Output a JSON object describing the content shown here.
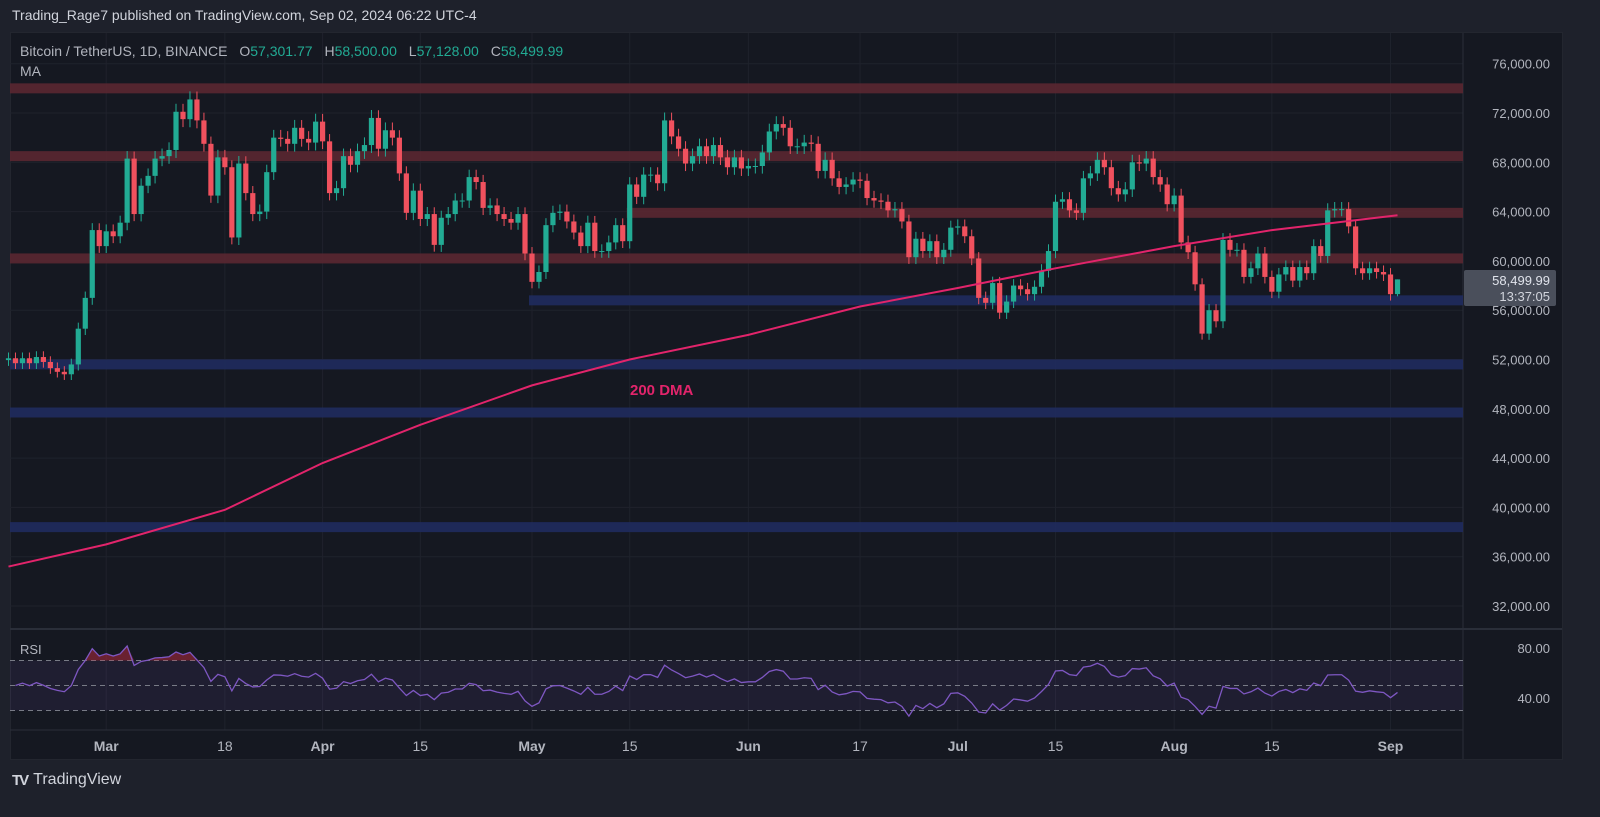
{
  "publication": "Trading_Rage7 published on TradingView.com, Sep 02, 2024 06:22 UTC-4",
  "header": {
    "symbol": "Bitcoin / TetherUS, 1D, BINANCE",
    "o_label": "O",
    "o": "57,301.77",
    "h_label": "H",
    "h": "58,500.00",
    "l_label": "L",
    "l": "57,128.00",
    "c_label": "C",
    "c": "58,499.99",
    "indicator": "MA"
  },
  "current_price": {
    "price": "58,499.99",
    "countdown": "13:37:05"
  },
  "footer": {
    "brand": "TradingView",
    "logo_glyph": "TV"
  },
  "chart_data": {
    "type": "candlestick",
    "colors": {
      "up": "#22ab94",
      "down": "#f0515e",
      "ma": "#e2246b",
      "rsi": "#7e57c2",
      "resistance": "#5a2731",
      "support": "#1f2b5e"
    },
    "price_axis": {
      "range": [
        30000,
        78000
      ],
      "ticks": [
        "76,000.00",
        "72,000.00",
        "68,000.00",
        "64,000.00",
        "60,000.00",
        "56,000.00",
        "52,000.00",
        "48,000.00",
        "44,000.00",
        "40,000.00",
        "36,000.00",
        "32,000.00"
      ],
      "tick_values": [
        76000,
        72000,
        68000,
        64000,
        60000,
        56000,
        52000,
        48000,
        44000,
        40000,
        36000,
        32000
      ]
    },
    "time_axis": {
      "ticks": [
        {
          "date": "2024-03-01",
          "label": "Mar",
          "bold": true
        },
        {
          "date": "2024-03-18",
          "label": "18",
          "bold": false
        },
        {
          "date": "2024-04-01",
          "label": "Apr",
          "bold": true
        },
        {
          "date": "2024-04-15",
          "label": "15",
          "bold": false
        },
        {
          "date": "2024-05-01",
          "label": "May",
          "bold": true
        },
        {
          "date": "2024-05-15",
          "label": "15",
          "bold": false
        },
        {
          "date": "2024-06-01",
          "label": "Jun",
          "bold": true
        },
        {
          "date": "2024-06-17",
          "label": "17",
          "bold": false
        },
        {
          "date": "2024-07-01",
          "label": "Jul",
          "bold": true
        },
        {
          "date": "2024-07-15",
          "label": "15",
          "bold": false
        },
        {
          "date": "2024-08-01",
          "label": "Aug",
          "bold": true
        },
        {
          "date": "2024-08-15",
          "label": "15",
          "bold": false
        },
        {
          "date": "2024-09-01",
          "label": "Sep",
          "bold": true
        }
      ]
    },
    "dates": [
      "2024-02-16",
      "2024-02-17",
      "2024-02-18",
      "2024-02-19",
      "2024-02-20",
      "2024-02-21",
      "2024-02-22",
      "2024-02-23",
      "2024-02-24",
      "2024-02-25",
      "2024-02-26",
      "2024-02-27",
      "2024-02-28",
      "2024-02-29",
      "2024-03-01",
      "2024-03-02",
      "2024-03-03",
      "2024-03-04",
      "2024-03-05",
      "2024-03-06",
      "2024-03-07",
      "2024-03-08",
      "2024-03-09",
      "2024-03-10",
      "2024-03-11",
      "2024-03-12",
      "2024-03-13",
      "2024-03-14",
      "2024-03-15",
      "2024-03-16",
      "2024-03-17",
      "2024-03-18",
      "2024-03-19",
      "2024-03-20",
      "2024-03-21",
      "2024-03-22",
      "2024-03-23",
      "2024-03-24",
      "2024-03-25",
      "2024-03-26",
      "2024-03-27",
      "2024-03-28",
      "2024-03-29",
      "2024-03-30",
      "2024-03-31",
      "2024-04-01",
      "2024-04-02",
      "2024-04-03",
      "2024-04-04",
      "2024-04-05",
      "2024-04-06",
      "2024-04-07",
      "2024-04-08",
      "2024-04-09",
      "2024-04-10",
      "2024-04-11",
      "2024-04-12",
      "2024-04-13",
      "2024-04-14",
      "2024-04-15",
      "2024-04-16",
      "2024-04-17",
      "2024-04-18",
      "2024-04-19",
      "2024-04-20",
      "2024-04-21",
      "2024-04-22",
      "2024-04-23",
      "2024-04-24",
      "2024-04-25",
      "2024-04-26",
      "2024-04-27",
      "2024-04-28",
      "2024-04-29",
      "2024-04-30",
      "2024-05-01",
      "2024-05-02",
      "2024-05-03",
      "2024-05-04",
      "2024-05-05",
      "2024-05-06",
      "2024-05-07",
      "2024-05-08",
      "2024-05-09",
      "2024-05-10",
      "2024-05-11",
      "2024-05-12",
      "2024-05-13",
      "2024-05-14",
      "2024-05-15",
      "2024-05-16",
      "2024-05-17",
      "2024-05-18",
      "2024-05-19",
      "2024-05-20",
      "2024-05-21",
      "2024-05-22",
      "2024-05-23",
      "2024-05-24",
      "2024-05-25",
      "2024-05-26",
      "2024-05-27",
      "2024-05-28",
      "2024-05-29",
      "2024-05-30",
      "2024-05-31",
      "2024-06-01",
      "2024-06-02",
      "2024-06-03",
      "2024-06-04",
      "2024-06-05",
      "2024-06-06",
      "2024-06-07",
      "2024-06-08",
      "2024-06-09",
      "2024-06-10",
      "2024-06-11",
      "2024-06-12",
      "2024-06-13",
      "2024-06-14",
      "2024-06-15",
      "2024-06-16",
      "2024-06-17",
      "2024-06-18",
      "2024-06-19",
      "2024-06-20",
      "2024-06-21",
      "2024-06-22",
      "2024-06-23",
      "2024-06-24",
      "2024-06-25",
      "2024-06-26",
      "2024-06-27",
      "2024-06-28",
      "2024-06-29",
      "2024-06-30",
      "2024-07-01",
      "2024-07-02",
      "2024-07-03",
      "2024-07-04",
      "2024-07-05",
      "2024-07-06",
      "2024-07-07",
      "2024-07-08",
      "2024-07-09",
      "2024-07-10",
      "2024-07-11",
      "2024-07-12",
      "2024-07-13",
      "2024-07-14",
      "2024-07-15",
      "2024-07-16",
      "2024-07-17",
      "2024-07-18",
      "2024-07-19",
      "2024-07-20",
      "2024-07-21",
      "2024-07-22",
      "2024-07-23",
      "2024-07-24",
      "2024-07-25",
      "2024-07-26",
      "2024-07-27",
      "2024-07-28",
      "2024-07-29",
      "2024-07-30",
      "2024-07-31",
      "2024-08-01",
      "2024-08-02",
      "2024-08-03",
      "2024-08-04",
      "2024-08-05",
      "2024-08-06",
      "2024-08-07",
      "2024-08-08",
      "2024-08-09",
      "2024-08-10",
      "2024-08-11",
      "2024-08-12",
      "2024-08-13",
      "2024-08-14",
      "2024-08-15",
      "2024-08-16",
      "2024-08-17",
      "2024-08-18",
      "2024-08-19",
      "2024-08-20",
      "2024-08-21",
      "2024-08-22",
      "2024-08-23",
      "2024-08-24",
      "2024-08-25",
      "2024-08-26",
      "2024-08-27",
      "2024-08-28",
      "2024-08-29",
      "2024-08-30",
      "2024-08-31",
      "2024-09-01",
      "2024-09-02"
    ],
    "close": [
      52100,
      51700,
      52100,
      51700,
      52200,
      51800,
      51300,
      51000,
      50800,
      51600,
      54500,
      57000,
      62500,
      61200,
      62400,
      62000,
      63100,
      68300,
      63800,
      66100,
      66900,
      68300,
      68500,
      69000,
      72100,
      71500,
      73100,
      71400,
      69500,
      65300,
      68400,
      67600,
      61900,
      67900,
      65500,
      63800,
      64000,
      67200,
      70000,
      69900,
      69500,
      70800,
      69900,
      69600,
      71300,
      69700,
      65500,
      65900,
      68500,
      67800,
      68900,
      69400,
      71600,
      69100,
      70600,
      70000,
      67100,
      63900,
      65700,
      63400,
      63800,
      61300,
      63500,
      63800,
      64900,
      64900,
      66800,
      66400,
      64300,
      64500,
      63800,
      63400,
      63100,
      63800,
      60600,
      58300,
      59100,
      62900,
      63900,
      64000,
      63200,
      62300,
      61200,
      63100,
      60800,
      60800,
      61500,
      62900,
      61600,
      66200,
      65200,
      67000,
      67000,
      66300,
      71400,
      70100,
      69100,
      67900,
      68500,
      69300,
      68500,
      69400,
      68400,
      67600,
      68400,
      67500,
      67700,
      67700,
      68800,
      70500,
      71100,
      70800,
      69300,
      69300,
      69600,
      69500,
      67300,
      68200,
      66700,
      66000,
      66200,
      66600,
      66500,
      65100,
      64900,
      64800,
      64100,
      64200,
      63200,
      60300,
      61800,
      60800,
      61600,
      60300,
      60900,
      62700,
      62800,
      62000,
      60200,
      57000,
      56600,
      58200,
      55800,
      56700,
      58000,
      57700,
      57300,
      57900,
      59200,
      60800,
      64800,
      65000,
      64100,
      63900,
      66700,
      67100,
      68200,
      67600,
      65900,
      65400,
      65800,
      68000,
      67900,
      68300,
      66800,
      66200,
      64600,
      65300,
      61500,
      60700,
      58100,
      54100,
      56000,
      55100,
      61700,
      60900,
      60900,
      58700,
      59400,
      60600,
      58700,
      57500,
      58900,
      59500,
      58400,
      59500,
      59000,
      61200,
      60400,
      64100,
      64200,
      64200,
      62800,
      59400,
      59000,
      59400,
      59100,
      58900,
      57300,
      58500
    ],
    "ma": {
      "label": "200 DMA",
      "points": [
        {
          "date": "2024-02-16",
          "value": 35200
        },
        {
          "date": "2024-03-01",
          "value": 37000
        },
        {
          "date": "2024-03-18",
          "value": 39800
        },
        {
          "date": "2024-04-01",
          "value": 43600
        },
        {
          "date": "2024-04-15",
          "value": 46700
        },
        {
          "date": "2024-05-01",
          "value": 49900
        },
        {
          "date": "2024-05-15",
          "value": 52000
        },
        {
          "date": "2024-06-01",
          "value": 54000
        },
        {
          "date": "2024-06-17",
          "value": 56300
        },
        {
          "date": "2024-07-01",
          "value": 57800
        },
        {
          "date": "2024-07-15",
          "value": 59400
        },
        {
          "date": "2024-08-01",
          "value": 61200
        },
        {
          "date": "2024-08-15",
          "value": 62500
        },
        {
          "date": "2024-09-02",
          "value": 63700
        }
      ]
    },
    "levels": [
      {
        "price": 74000,
        "kind": "resistance",
        "from": "2024-02-16"
      },
      {
        "price": 68500,
        "kind": "resistance",
        "from": "2024-02-16"
      },
      {
        "price": 63900,
        "kind": "resistance",
        "from": "2024-05-15"
      },
      {
        "price": 60200,
        "kind": "resistance",
        "from": "2024-02-16"
      },
      {
        "price": 56800,
        "kind": "support",
        "from": "2024-05-01"
      },
      {
        "price": 51600,
        "kind": "support",
        "from": "2024-02-16"
      },
      {
        "price": 47700,
        "kind": "support",
        "from": "2024-02-16"
      },
      {
        "price": 38400,
        "kind": "support",
        "from": "2024-02-16"
      }
    ],
    "rsi": {
      "label": "RSI",
      "upper": 70,
      "middle": 50,
      "lower": 30,
      "ticks": [
        "80.00",
        "40.00"
      ],
      "tick_values": [
        80,
        40
      ]
    }
  }
}
